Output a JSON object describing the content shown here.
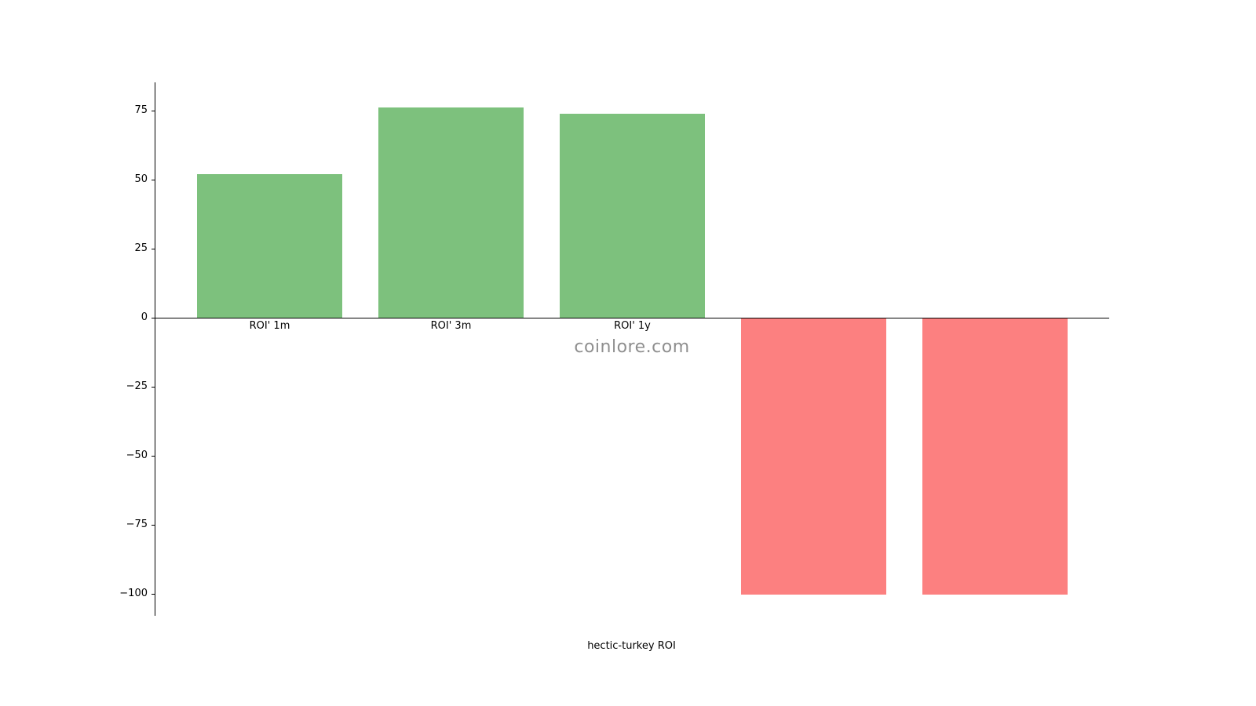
{
  "page": {
    "background": "#ffffff"
  },
  "chart_data": {
    "type": "bar",
    "title": "hectic-turkey ROI",
    "watermark": "coinlore.com",
    "categories": [
      "ROI' 1m",
      "ROI' 3m",
      "ROI' 1y",
      "",
      ""
    ],
    "values": [
      52,
      76,
      74,
      -100,
      -100
    ],
    "yticks": [
      75,
      50,
      25,
      0,
      -25,
      -50,
      -75,
      -100
    ],
    "ytick_labels": [
      "75",
      "50",
      "25",
      "0",
      "−25",
      "−50",
      "−75",
      "−100"
    ],
    "ylim": [
      -108,
      85
    ],
    "xlabel": "",
    "ylabel": "",
    "grid": false,
    "legend": "none",
    "colors": {
      "positive": "#7dc17d",
      "negative": "#fc8080",
      "axis": "#000000",
      "tick_text": "#000000",
      "watermark": "#8f8f8f",
      "title_text": "#000000"
    }
  }
}
